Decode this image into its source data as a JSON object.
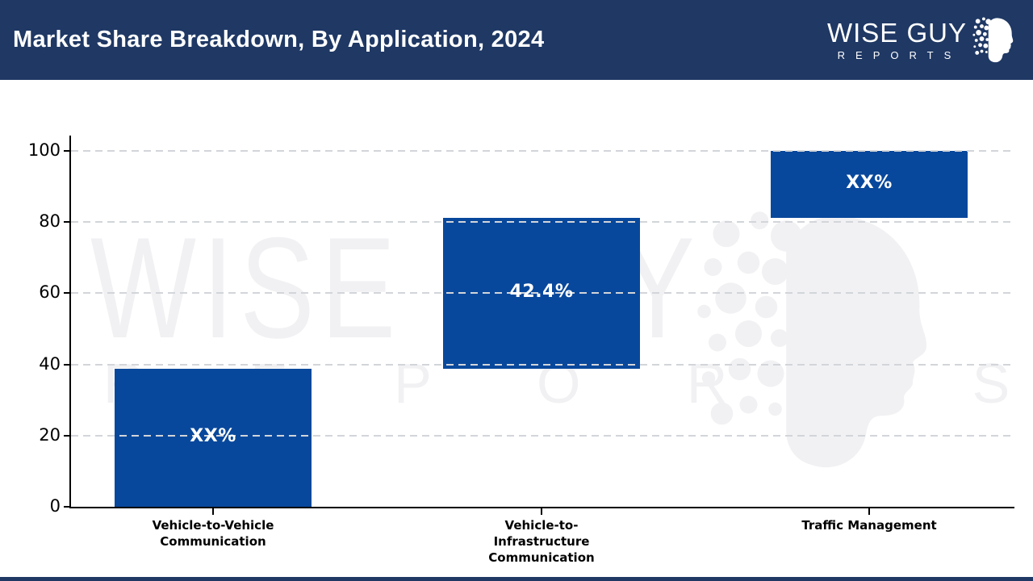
{
  "header": {
    "title": "Market Share Breakdown, By Application, 2024",
    "logo": {
      "name": "WISE GUY",
      "sub": "REPORTS"
    },
    "bg_color": "#1f3864",
    "text_color": "#ffffff"
  },
  "watermark": {
    "text_large": "WISE GUY",
    "text_small": "R E P O R T S",
    "color": "#f1f1f3"
  },
  "chart_data": {
    "type": "bar",
    "subtype": "waterfall",
    "title": "Market Share Breakdown, By Application, 2024",
    "xlabel": "",
    "ylabel": "",
    "categories": [
      "Vehicle-to-Vehicle Communication",
      "Vehicle-to-Infrastructure Communication",
      "Traffic Management"
    ],
    "category_lines": [
      [
        "Vehicle-to-Vehicle",
        "Communication"
      ],
      [
        "Vehicle-to-",
        "Infrastructure",
        "Communication"
      ],
      [
        "Traffic Management"
      ]
    ],
    "values": [
      38.8,
      42.4,
      18.8
    ],
    "segments": [
      {
        "start": 0,
        "end": 38.8
      },
      {
        "start": 38.8,
        "end": 81.2
      },
      {
        "start": 81.2,
        "end": 100
      }
    ],
    "bar_labels": [
      "XX%",
      "42.4%",
      "XX%"
    ],
    "ylim": [
      0,
      100
    ],
    "yticks": [
      0,
      20,
      40,
      60,
      80,
      100
    ],
    "grid": {
      "axis": "y",
      "style": "dashed",
      "color": "#d2d5d9",
      "over_bars": true
    },
    "bar_color": "#08489c",
    "bar_label_color": "#ffffff",
    "axis_color": "#000000",
    "legend": "none"
  },
  "footer": {
    "bar_color": "#1f3864"
  }
}
